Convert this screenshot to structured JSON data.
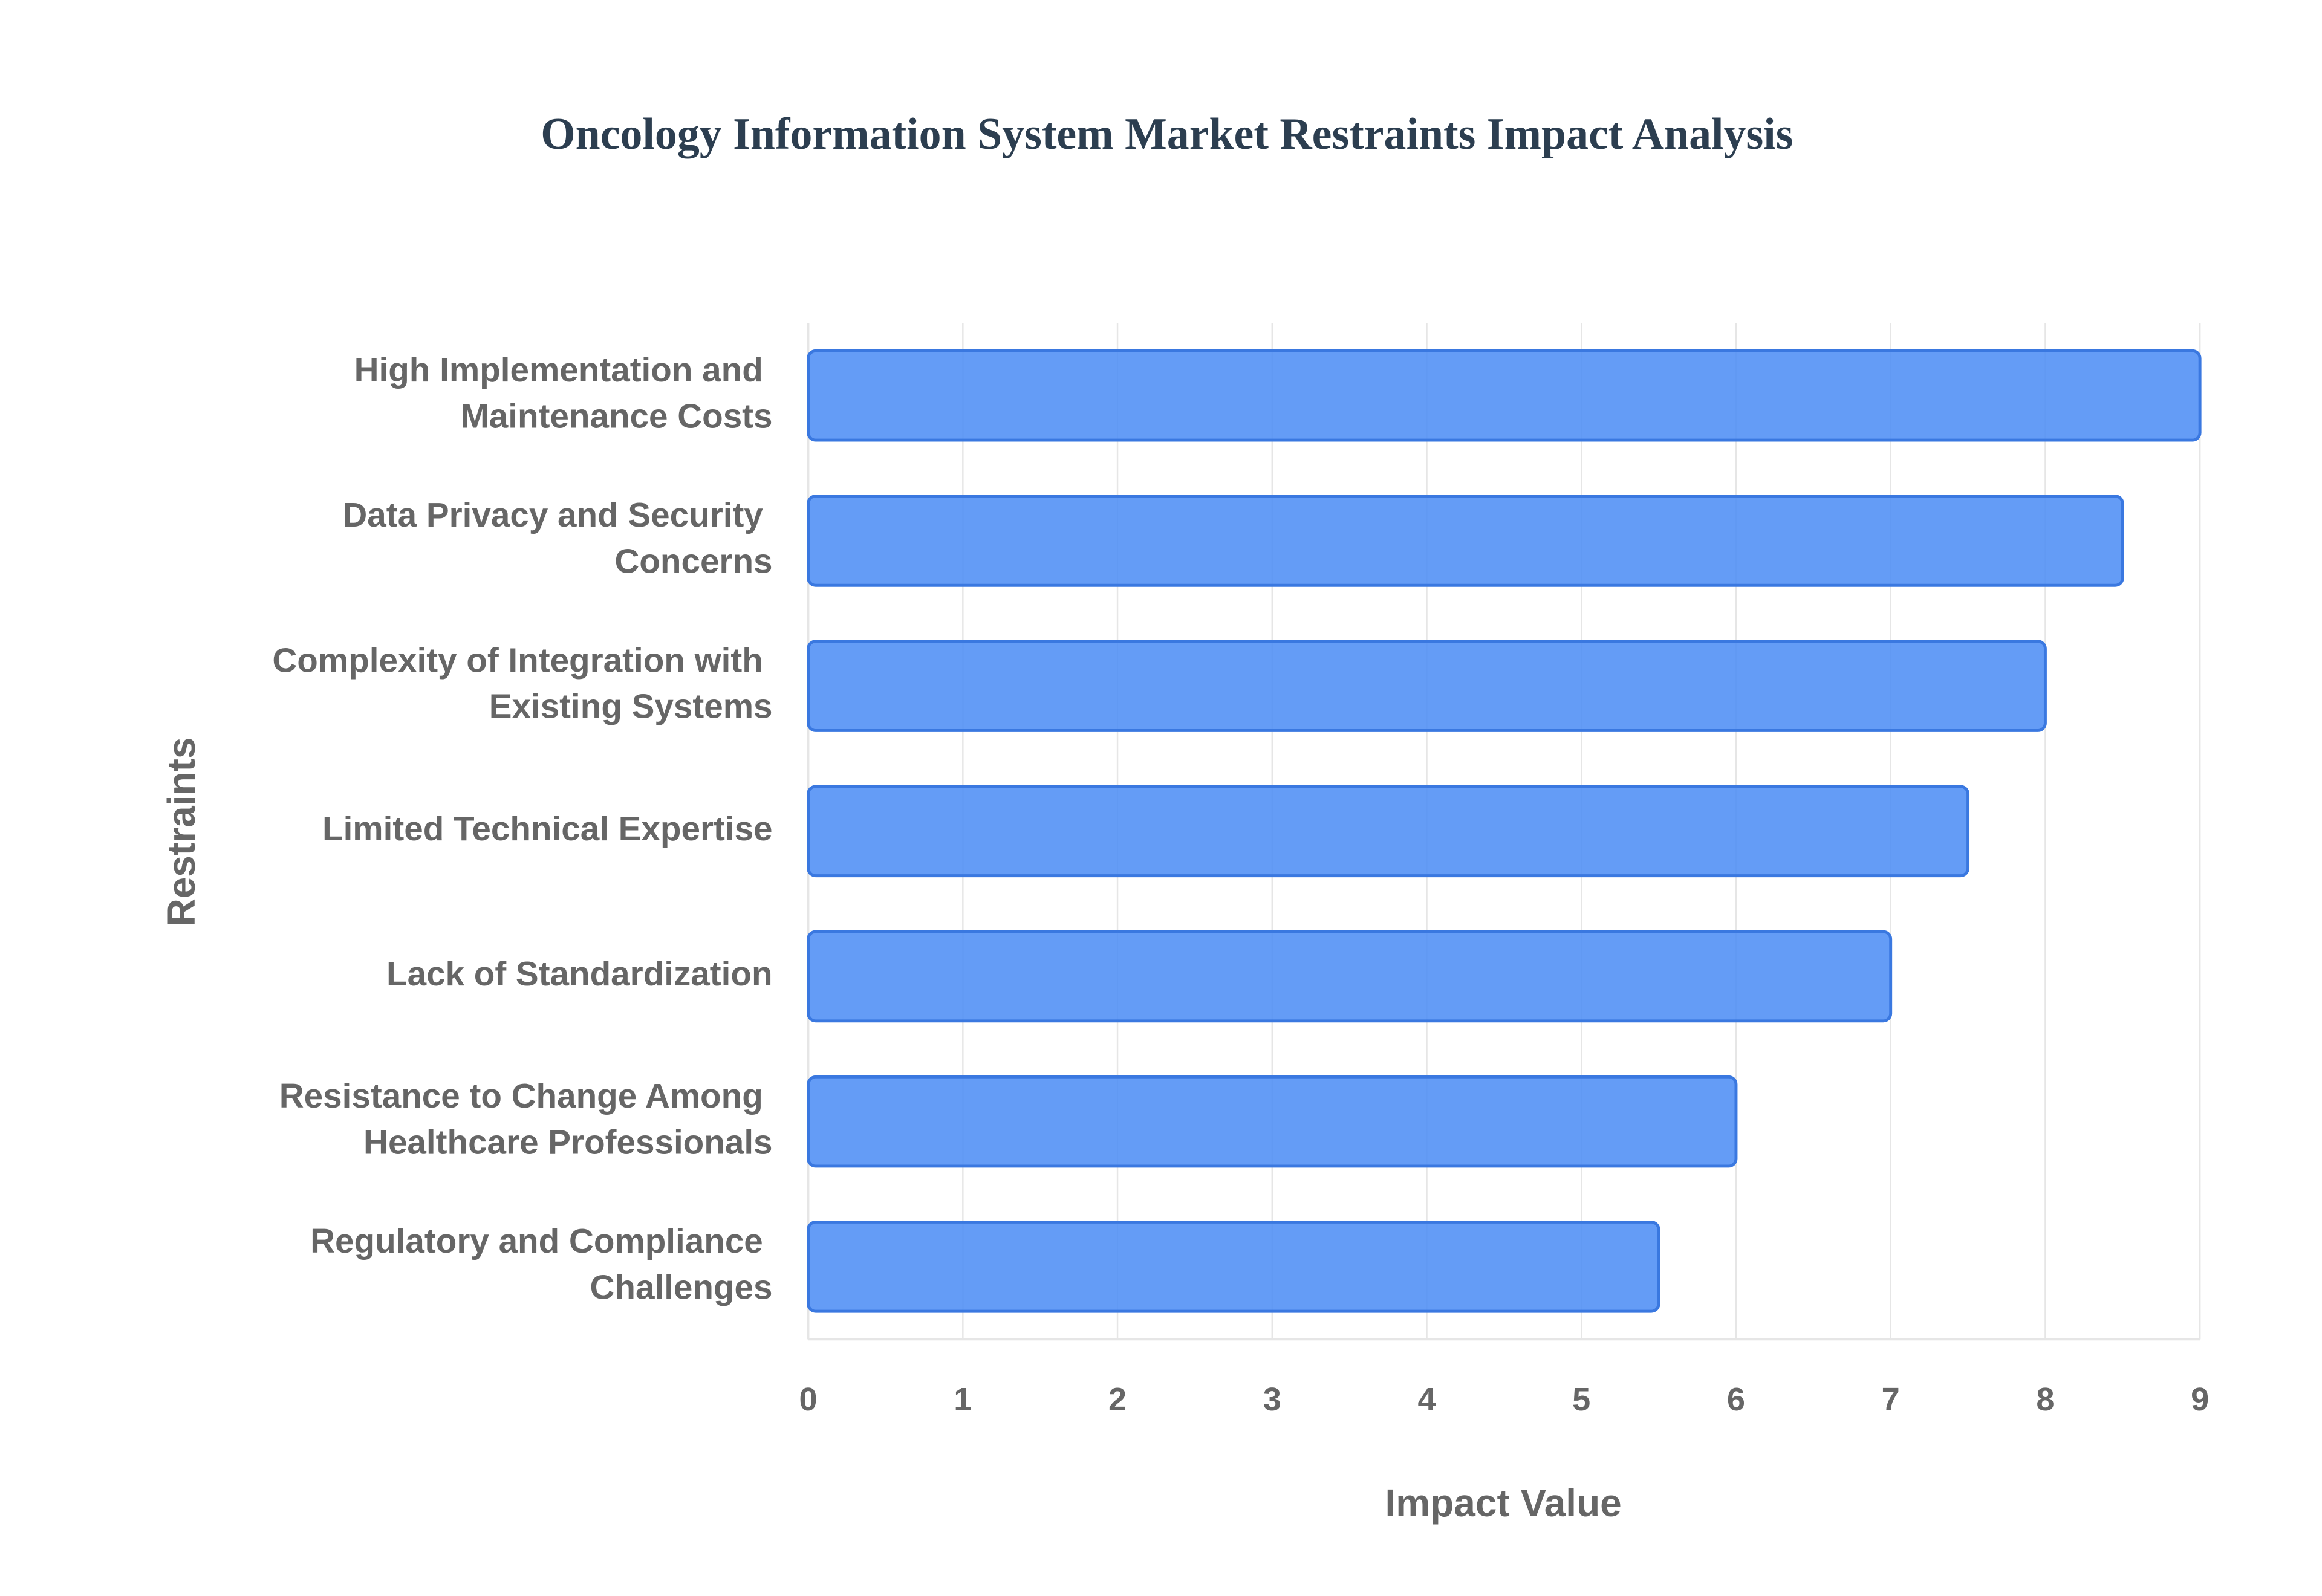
{
  "chart_data": {
    "type": "bar",
    "orientation": "horizontal",
    "title": "Oncology Information System Market Restraints Impact Analysis",
    "x_label": "Impact Value",
    "y_label": "Restraints",
    "categories": [
      "High Implementation and Maintenance Costs",
      "Data Privacy and Security Concerns",
      "Complexity of Integration with Existing Systems",
      "Limited Technical Expertise",
      "Lack of Standardization",
      "Resistance to Change Among Healthcare Professionals",
      "Regulatory and Compliance Challenges"
    ],
    "values": [
      9,
      8.5,
      8,
      7.5,
      7,
      6,
      5.5
    ],
    "color": "#4e8ef5",
    "xlim": [
      0,
      9
    ],
    "xticks": [
      0,
      1,
      2,
      3,
      4,
      5,
      6,
      7,
      8,
      9
    ],
    "grid": true
  }
}
